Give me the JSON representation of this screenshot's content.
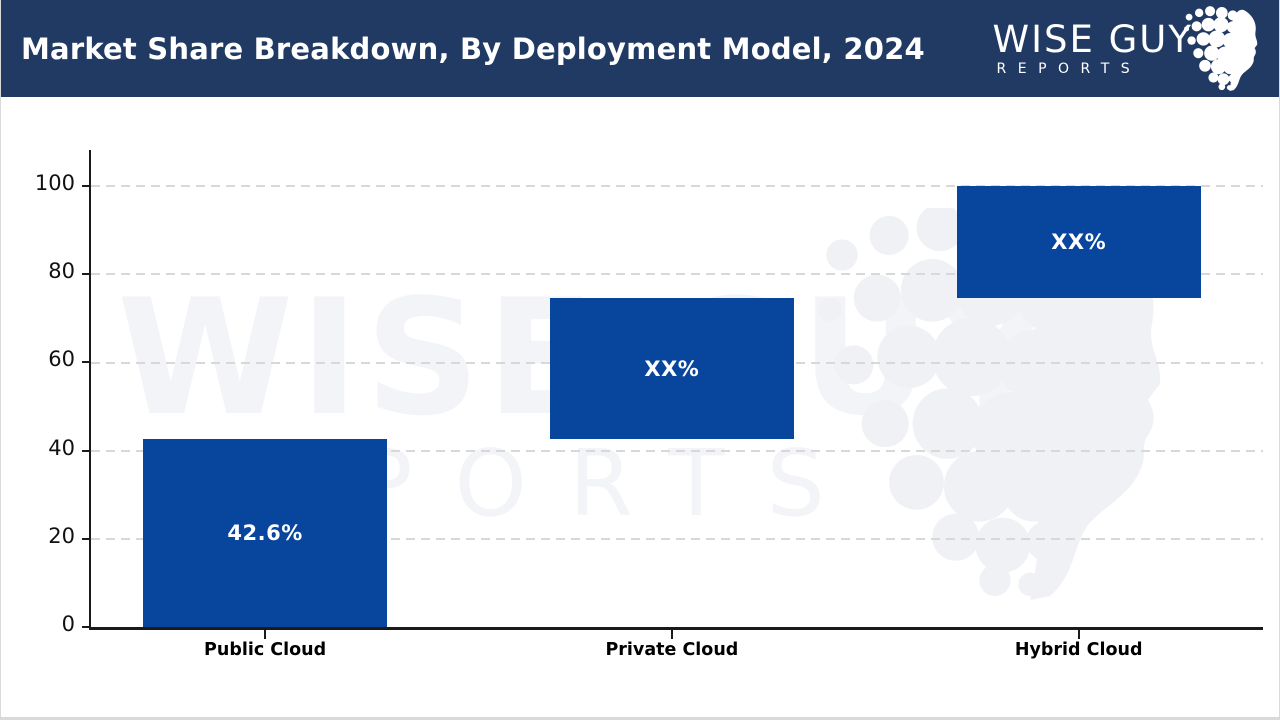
{
  "header": {
    "title": "Market Share Breakdown, By Deployment Model, 2024",
    "bg_color": "#213A63",
    "logo": {
      "line1": "WISE GUY",
      "line2": "REPORTS"
    }
  },
  "watermark": {
    "line1": "WISE GUY",
    "line2": "REPORTS"
  },
  "chart_data": {
    "type": "bar",
    "subtype": "waterfall-segments",
    "title": "Market Share Breakdown, By Deployment Model, 2024",
    "categories": [
      "Public Cloud",
      "Private Cloud",
      "Hybrid Cloud"
    ],
    "bars": [
      {
        "category": "Public Cloud",
        "start": 0,
        "end": 42.6,
        "label": "42.6%"
      },
      {
        "category": "Private Cloud",
        "start": 42.6,
        "end": 74.6,
        "label": "XX%"
      },
      {
        "category": "Hybrid Cloud",
        "start": 74.6,
        "end": 100,
        "label": "XX%"
      }
    ],
    "yticks": [
      0,
      20,
      40,
      60,
      80,
      100
    ],
    "ylim": [
      0,
      108.2
    ],
    "xlabel": "",
    "ylabel": "",
    "grid": {
      "horizontal": true,
      "style": "dashed",
      "color": "#d8d8d8"
    },
    "legend": "none",
    "bar_color": "#08459C",
    "bar_label_color": "#ffffff",
    "axis_color": "#1a1a1a",
    "tick_label_color": "#111111"
  }
}
